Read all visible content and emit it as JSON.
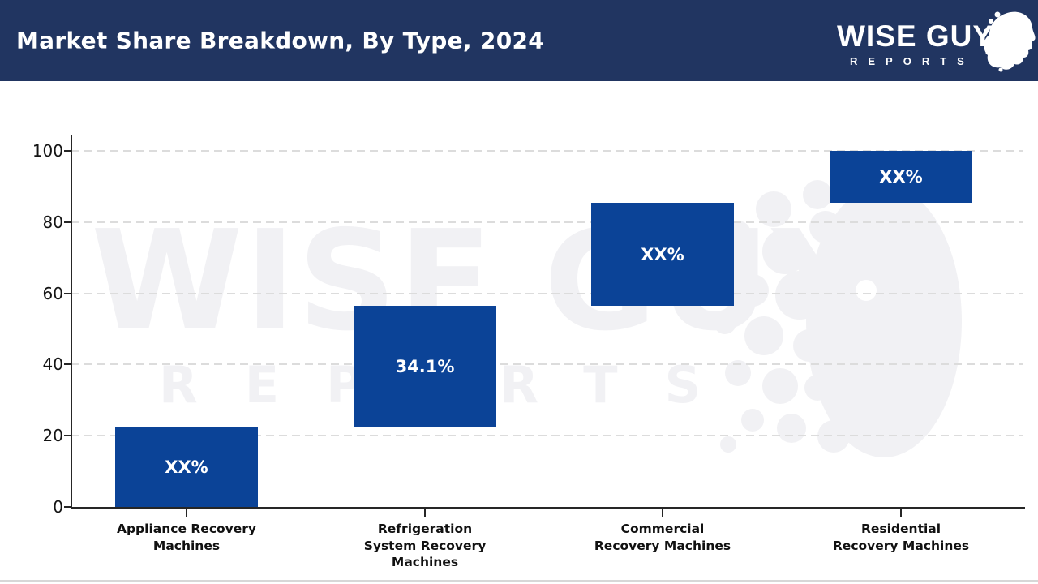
{
  "header": {
    "title": "Market Share Breakdown, By Type, 2024",
    "logo": {
      "brand": "WISE GUY",
      "sub": "REPORTS"
    }
  },
  "watermark": {
    "brand": "WISE GUY",
    "sub": "REPORTS"
  },
  "chart_data": {
    "type": "bar",
    "variant": "waterfall",
    "title": "Market Share Breakdown, By Type, 2024",
    "categories": [
      "Appliance Recovery\nMachines",
      "Refrigeration\nSystem Recovery\nMachines",
      "Commercial\nRecovery Machines",
      "Residential\nRecovery Machines"
    ],
    "segments": [
      {
        "start": 0,
        "end": 22.4,
        "label": "XX%"
      },
      {
        "start": 22.4,
        "end": 56.5,
        "label": "34.1%"
      },
      {
        "start": 56.5,
        "end": 85.4,
        "label": "XX%"
      },
      {
        "start": 85.4,
        "end": 100,
        "label": "XX%"
      }
    ],
    "ylim": [
      0,
      100
    ],
    "yticks": [
      0,
      20,
      40,
      60,
      80,
      100
    ],
    "grid": "horizontal-dashed",
    "legend": "none",
    "bar_color": "#0b4397",
    "bar_label_color": "#ffffff",
    "axis_color": "#262626",
    "gridline_color": "#dcdcdc",
    "header_bg_color": "#213561",
    "watermark_color": "#f1f1f4"
  }
}
